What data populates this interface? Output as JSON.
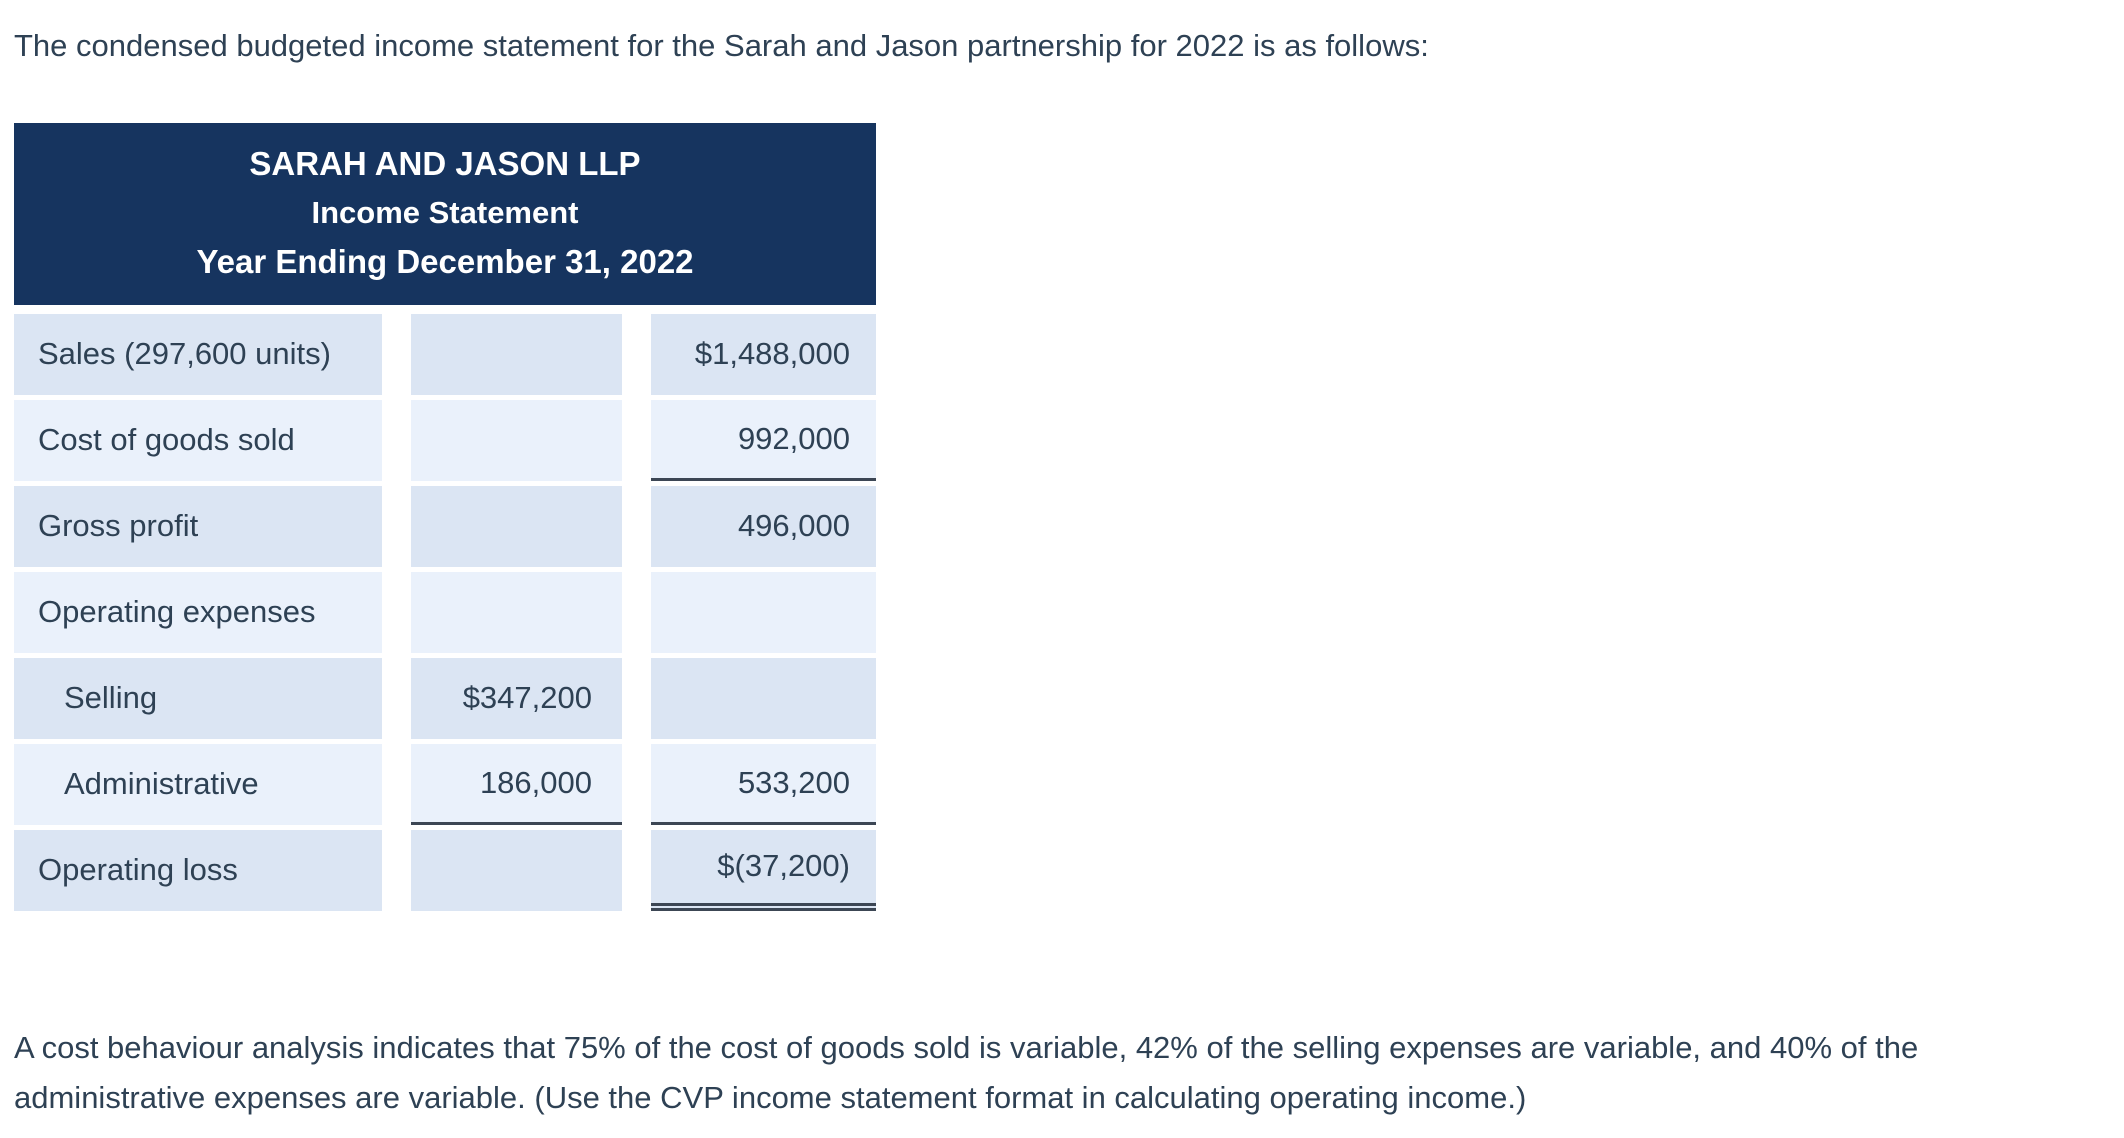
{
  "page": {
    "intro": "The condensed budgeted income statement for the Sarah and Jason partnership for 2022 is as follows:",
    "analysis_note": "A cost behaviour analysis indicates that 75% of the cost of goods sold is variable, 42% of the selling expenses are variable, and 40% of the administrative expenses are variable. (Use the CVP income statement format in calculating operating income.)"
  },
  "statement": {
    "company": "SARAH AND JASON LLP",
    "title": "Income Statement",
    "period": "Year Ending December 31, 2022",
    "rows": [
      {
        "label": "Sales (297,600 units)",
        "amount1": "",
        "amount2": "$1,488,000"
      },
      {
        "label": "Cost of goods sold",
        "amount1": "",
        "amount2": "992,000"
      },
      {
        "label": "Gross profit",
        "amount1": "",
        "amount2": "496,000"
      },
      {
        "label": "Operating expenses",
        "amount1": "",
        "amount2": ""
      },
      {
        "label": "Selling",
        "amount1": "$347,200",
        "amount2": ""
      },
      {
        "label": "Administrative",
        "amount1": "186,000",
        "amount2": "533,200"
      },
      {
        "label": "Operating loss",
        "amount1": "",
        "amount2": "$(37,200)"
      }
    ]
  },
  "colors": {
    "page-bg": "#ffffff",
    "header-bg": "#16345f",
    "header-text": "#ffffff",
    "row-dark": "#dbe5f3",
    "row-light": "#eaf1fb",
    "text": "#2e4154",
    "rule": "#3c4654"
  }
}
